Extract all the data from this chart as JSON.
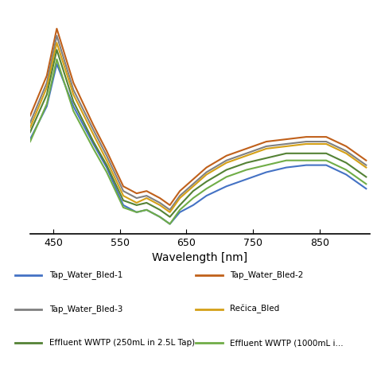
{
  "xlabel": "Wavelength [nm]",
  "xticks": [
    450,
    550,
    650,
    750,
    850
  ],
  "xlim": [
    415,
    925
  ],
  "background_color": "#ffffff",
  "series": [
    {
      "label": "Tap_Water_Bled-1",
      "color": "#4472c4",
      "wavelengths": [
        415,
        440,
        455,
        480,
        510,
        530,
        555,
        575,
        590,
        610,
        625,
        640,
        660,
        680,
        710,
        740,
        770,
        800,
        830,
        860,
        890,
        920
      ],
      "values": [
        0.58,
        0.72,
        0.9,
        0.72,
        0.56,
        0.46,
        0.3,
        0.27,
        0.28,
        0.25,
        0.22,
        0.27,
        0.3,
        0.34,
        0.38,
        0.41,
        0.44,
        0.46,
        0.47,
        0.47,
        0.43,
        0.37
      ]
    },
    {
      "label": "Tap_Water_Bled-2",
      "color": "#c0601a",
      "wavelengths": [
        415,
        440,
        455,
        480,
        510,
        530,
        555,
        575,
        590,
        610,
        625,
        640,
        660,
        680,
        710,
        740,
        770,
        800,
        830,
        860,
        890,
        920
      ],
      "values": [
        0.68,
        0.85,
        1.05,
        0.82,
        0.64,
        0.53,
        0.38,
        0.35,
        0.36,
        0.33,
        0.3,
        0.36,
        0.41,
        0.46,
        0.51,
        0.54,
        0.57,
        0.58,
        0.59,
        0.59,
        0.55,
        0.49
      ]
    },
    {
      "label": "Tap_Water_Bled-3",
      "color": "#808080",
      "wavelengths": [
        415,
        440,
        455,
        480,
        510,
        530,
        555,
        575,
        590,
        610,
        625,
        640,
        660,
        680,
        710,
        740,
        770,
        800,
        830,
        860,
        890,
        920
      ],
      "values": [
        0.65,
        0.82,
        1.02,
        0.79,
        0.62,
        0.51,
        0.36,
        0.33,
        0.34,
        0.31,
        0.28,
        0.34,
        0.39,
        0.44,
        0.49,
        0.52,
        0.55,
        0.56,
        0.57,
        0.57,
        0.53,
        0.47
      ]
    },
    {
      "label": "Rečica_Bled",
      "color": "#d4a017",
      "wavelengths": [
        415,
        440,
        455,
        480,
        510,
        530,
        555,
        575,
        590,
        610,
        625,
        640,
        660,
        680,
        710,
        740,
        770,
        800,
        830,
        860,
        890,
        920
      ],
      "values": [
        0.63,
        0.8,
        0.99,
        0.77,
        0.6,
        0.49,
        0.34,
        0.31,
        0.33,
        0.3,
        0.27,
        0.33,
        0.38,
        0.43,
        0.48,
        0.51,
        0.54,
        0.55,
        0.56,
        0.56,
        0.52,
        0.46
      ]
    },
    {
      "label": "Effluent WWTP (250mL in 2.5L Tap)",
      "color": "#548235",
      "wavelengths": [
        415,
        440,
        455,
        480,
        510,
        530,
        555,
        575,
        590,
        610,
        625,
        640,
        660,
        680,
        710,
        740,
        770,
        800,
        830,
        860,
        890,
        920
      ],
      "values": [
        0.61,
        0.77,
        0.96,
        0.74,
        0.57,
        0.47,
        0.32,
        0.3,
        0.31,
        0.28,
        0.25,
        0.3,
        0.36,
        0.4,
        0.45,
        0.48,
        0.5,
        0.52,
        0.52,
        0.52,
        0.48,
        0.42
      ]
    },
    {
      "label": "Effluent WWTP (1000mL i...",
      "color": "#70ad47",
      "wavelengths": [
        415,
        440,
        455,
        480,
        510,
        530,
        555,
        575,
        590,
        610,
        625,
        640,
        660,
        680,
        710,
        740,
        770,
        800,
        830,
        860,
        890,
        920
      ],
      "values": [
        0.57,
        0.73,
        0.92,
        0.7,
        0.54,
        0.44,
        0.29,
        0.27,
        0.28,
        0.25,
        0.22,
        0.28,
        0.33,
        0.37,
        0.42,
        0.45,
        0.47,
        0.49,
        0.49,
        0.49,
        0.45,
        0.39
      ]
    }
  ],
  "legend_row1": [
    {
      "label": "Tap_Water_Bled-1",
      "color": "#4472c4"
    },
    {
      "label": "Tap_Water_Bled-2",
      "color": "#c0601a"
    }
  ],
  "legend_row2": [
    {
      "label": "Tap_Water_Bled-3",
      "color": "#808080"
    },
    {
      "label": "Rečica_Bled",
      "color": "#d4a017"
    }
  ],
  "legend_row3": [
    {
      "label": "Effluent WWTP (250mL in 2.5L Tap)",
      "color": "#548235"
    },
    {
      "label": "Effluent WWTP (1000mL i...",
      "color": "#70ad47"
    }
  ],
  "linewidth": 1.5,
  "xlabel_fontsize": 10,
  "tick_fontsize": 9
}
